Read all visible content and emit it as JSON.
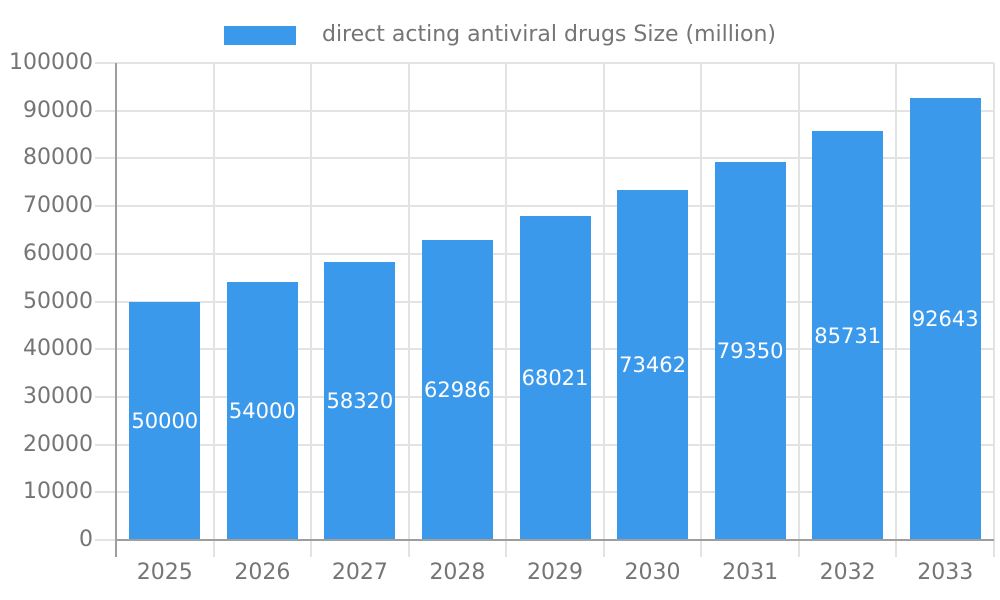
{
  "chart_data": {
    "type": "bar",
    "title": "",
    "legend": {
      "position": "top",
      "entries": [
        "direct acting antiviral drugs Size (million)"
      ]
    },
    "categories": [
      "2025",
      "2026",
      "2027",
      "2028",
      "2029",
      "2030",
      "2031",
      "2032",
      "2033"
    ],
    "series": [
      {
        "name": "direct acting antiviral drugs Size (million)",
        "values": [
          50000,
          54000,
          58320,
          62986,
          68021,
          73462,
          79350,
          85731,
          92643
        ]
      }
    ],
    "value_labels": [
      "50000",
      "54000",
      "58320",
      "62986",
      "68021",
      "73462",
      "79350",
      "85731",
      "92643"
    ],
    "value_label_position": "inside-center",
    "xlabel": "",
    "ylabel": "",
    "ylim": [
      0,
      100000
    ],
    "ytick_step": 10000,
    "yticks": [
      "0",
      "10000",
      "20000",
      "30000",
      "40000",
      "50000",
      "60000",
      "70000",
      "80000",
      "90000",
      "100000"
    ],
    "grid": true,
    "colors": {
      "bar": "#3B99EC",
      "grid_line": "#e3e3e3",
      "axis_line": "#9e9e9e",
      "axis_text": "#757575",
      "value_text": "#ffffff",
      "background": "#ffffff"
    }
  }
}
